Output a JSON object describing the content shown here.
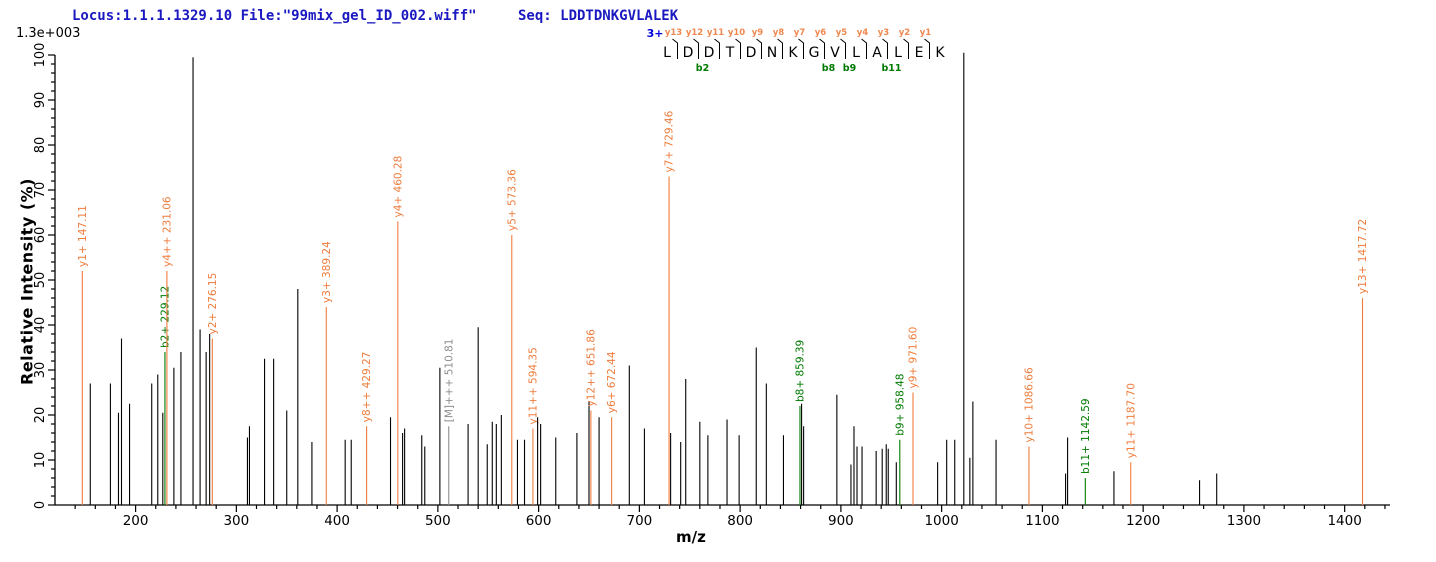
{
  "header": {
    "locus_file": "Locus:1.1.1.1329.10 File:\"99mix_gel_ID_002.wiff\"",
    "seq_text": "Seq: LDDTDNKGVLALEK"
  },
  "scale_note": "1.3e+003",
  "colors": {
    "y_ion": "#ee7c3c",
    "b_ion": "#007a00",
    "precursor": "#8d8d8d",
    "unassigned": "#000000",
    "axis": "#000000",
    "header_text": "#1a18c0",
    "charge_label": "#0202dd",
    "y_tag": "#f0884f"
  },
  "peptide": {
    "charge_label": "3+",
    "residues": [
      "L",
      "D",
      "D",
      "T",
      "D",
      "N",
      "K",
      "G",
      "V",
      "L",
      "A",
      "L",
      "E",
      "K"
    ],
    "y_ion_labels": [
      "y13",
      "y12",
      "y11",
      "y10",
      "y9",
      "y8",
      "y7",
      "y6",
      "y5",
      "y4",
      "y3",
      "y2",
      "y1"
    ],
    "b_ion_labels": [
      {
        "label": "b2",
        "gap": 2
      },
      {
        "label": "b8",
        "gap": 8
      },
      {
        "label": "b9",
        "gap": 9
      },
      {
        "label": "b11",
        "gap": 11
      }
    ]
  },
  "chart_data": {
    "type": "bar",
    "subtype": "ms2-stick-spectrum",
    "title": "",
    "xlabel": "m/z",
    "ylabel": "Relative  Intensity (%)",
    "xlim": [
      120,
      1445
    ],
    "ylim": [
      0,
      100
    ],
    "x_major_ticks": [
      200,
      300,
      400,
      500,
      600,
      700,
      800,
      900,
      1000,
      1100,
      1200,
      1300,
      1400
    ],
    "x_minor_step": 20,
    "y_major_ticks": [
      0,
      10,
      20,
      30,
      40,
      50,
      60,
      70,
      80,
      90,
      100
    ],
    "y_minor_step": 2,
    "grid": false,
    "peaks_columns": [
      "mz",
      "intensity_pct",
      "series",
      "label"
    ],
    "series_legend": {
      "y": "y-ion (orange)",
      "b": "b-ion (green)",
      "M": "precursor (gray)",
      "": "unassigned (black)"
    },
    "peaks": [
      [
        147.11,
        52,
        "y",
        "y1+ 147.11"
      ],
      [
        155,
        27,
        "",
        ""
      ],
      [
        175,
        27,
        "",
        ""
      ],
      [
        183,
        20.5,
        "",
        ""
      ],
      [
        186,
        37,
        "",
        ""
      ],
      [
        194,
        22.5,
        "",
        ""
      ],
      [
        216,
        27,
        "",
        ""
      ],
      [
        222,
        29,
        "",
        ""
      ],
      [
        227,
        20.5,
        "",
        ""
      ],
      [
        229.12,
        34,
        "b",
        "b2+ 229.12"
      ],
      [
        231.06,
        52,
        "y",
        "y4++ 231.06"
      ],
      [
        238,
        30.5,
        "",
        ""
      ],
      [
        245,
        34,
        "",
        ""
      ],
      [
        257,
        99.5,
        "",
        ""
      ],
      [
        264,
        39,
        "",
        ""
      ],
      [
        270,
        34,
        "",
        ""
      ],
      [
        273.5,
        38,
        "",
        ""
      ],
      [
        276.15,
        37,
        "y",
        "y2+ 276.15"
      ],
      [
        311,
        15,
        "",
        ""
      ],
      [
        313,
        17.5,
        "",
        ""
      ],
      [
        328,
        32.5,
        "",
        ""
      ],
      [
        337,
        32.5,
        "",
        ""
      ],
      [
        350,
        21,
        "",
        ""
      ],
      [
        361,
        48,
        "",
        ""
      ],
      [
        375,
        14,
        "",
        ""
      ],
      [
        389.24,
        44,
        "y",
        "y3+ 389.24"
      ],
      [
        408,
        14.5,
        "",
        ""
      ],
      [
        414,
        14.5,
        "",
        ""
      ],
      [
        429.27,
        17.5,
        "y",
        "y8++ 429.27"
      ],
      [
        453,
        19.5,
        "",
        ""
      ],
      [
        460.28,
        63,
        "y",
        "y4+ 460.28"
      ],
      [
        465,
        16,
        "",
        ""
      ],
      [
        467,
        17,
        "",
        ""
      ],
      [
        484,
        15.5,
        "",
        ""
      ],
      [
        487,
        13,
        "",
        ""
      ],
      [
        502,
        30.5,
        "",
        ""
      ],
      [
        510.81,
        17.5,
        "M",
        "[M]+++ 510.81"
      ],
      [
        530,
        18,
        "",
        ""
      ],
      [
        540,
        39.5,
        "",
        ""
      ],
      [
        549,
        13.5,
        "",
        ""
      ],
      [
        554,
        18.5,
        "",
        ""
      ],
      [
        558,
        18,
        "",
        ""
      ],
      [
        563,
        20,
        "",
        ""
      ],
      [
        573.36,
        60,
        "y",
        "y5+ 573.36"
      ],
      [
        579,
        14.5,
        "",
        ""
      ],
      [
        586,
        14.5,
        "",
        ""
      ],
      [
        594.35,
        17,
        "y",
        "y11++ 594.35"
      ],
      [
        599,
        19.5,
        "",
        ""
      ],
      [
        602,
        18,
        "",
        ""
      ],
      [
        617,
        15,
        "",
        ""
      ],
      [
        638,
        16,
        "",
        ""
      ],
      [
        650,
        23,
        "",
        ""
      ],
      [
        651.86,
        21,
        "y",
        "y12++ 651.86"
      ],
      [
        660,
        19.5,
        "",
        ""
      ],
      [
        672.44,
        19.5,
        "y",
        "y6+ 672.44"
      ],
      [
        690,
        31,
        "",
        ""
      ],
      [
        705,
        17,
        "",
        ""
      ],
      [
        729.46,
        73,
        "y",
        "y7+ 729.46"
      ],
      [
        731,
        16,
        "",
        ""
      ],
      [
        741,
        14,
        "",
        ""
      ],
      [
        746,
        28,
        "",
        ""
      ],
      [
        760,
        18.5,
        "",
        ""
      ],
      [
        768,
        15.5,
        "",
        ""
      ],
      [
        787,
        19,
        "",
        ""
      ],
      [
        799,
        15.5,
        "",
        ""
      ],
      [
        816,
        35,
        "",
        ""
      ],
      [
        826,
        27,
        "",
        ""
      ],
      [
        843,
        15.5,
        "",
        ""
      ],
      [
        859.39,
        22,
        "b",
        "b8+ 859.39"
      ],
      [
        861,
        22.5,
        "",
        ""
      ],
      [
        863,
        17.5,
        "",
        ""
      ],
      [
        896,
        24.5,
        "",
        ""
      ],
      [
        910,
        9,
        "",
        ""
      ],
      [
        913,
        17.5,
        "",
        ""
      ],
      [
        916,
        13,
        "",
        ""
      ],
      [
        921,
        13,
        "",
        ""
      ],
      [
        935,
        12,
        "",
        ""
      ],
      [
        941,
        12.5,
        "",
        ""
      ],
      [
        945,
        13.5,
        "",
        ""
      ],
      [
        947,
        12.5,
        "",
        ""
      ],
      [
        955,
        9.5,
        "",
        ""
      ],
      [
        958.48,
        14.5,
        "b",
        "b9+ 958.48"
      ],
      [
        971.6,
        25,
        "y",
        "y9+ 971.60"
      ],
      [
        996,
        9.5,
        "",
        ""
      ],
      [
        1005,
        14.5,
        "",
        ""
      ],
      [
        1013,
        14.5,
        "",
        ""
      ],
      [
        1022,
        100.5,
        "",
        ""
      ],
      [
        1028,
        10.5,
        "",
        ""
      ],
      [
        1031,
        23,
        "",
        ""
      ],
      [
        1054,
        14.5,
        "",
        ""
      ],
      [
        1086.66,
        13,
        "y",
        "y10+ 1086.66"
      ],
      [
        1123,
        7,
        "",
        ""
      ],
      [
        1125,
        15,
        "",
        ""
      ],
      [
        1142.59,
        6,
        "b",
        "b11+ 1142.59"
      ],
      [
        1171,
        7.5,
        "",
        ""
      ],
      [
        1187.7,
        9.5,
        "y",
        "y11+ 1187.70"
      ],
      [
        1256,
        5.5,
        "",
        ""
      ],
      [
        1273,
        7,
        "",
        ""
      ],
      [
        1417.72,
        46,
        "y",
        "y13+ 1417.72"
      ]
    ]
  }
}
